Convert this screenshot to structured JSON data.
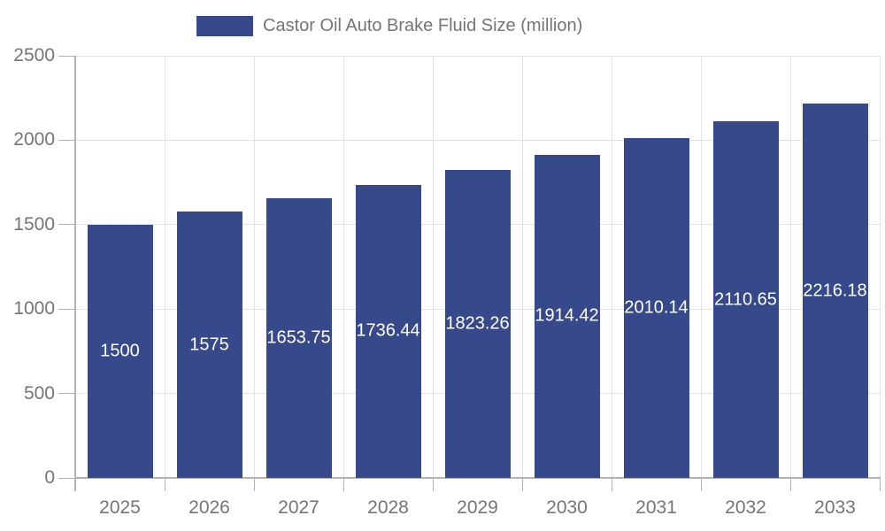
{
  "legend": {
    "label": "Castor Oil Auto Brake Fluid Size (million)"
  },
  "chart_data": {
    "type": "bar",
    "title": "",
    "xlabel": "",
    "ylabel": "",
    "categories": [
      "2025",
      "2026",
      "2027",
      "2028",
      "2029",
      "2030",
      "2031",
      "2032",
      "2033"
    ],
    "values": [
      1500,
      1575,
      1653.75,
      1736.44,
      1823.26,
      1914.42,
      2010.14,
      2110.65,
      2216.18
    ],
    "value_labels": [
      "1500",
      "1575",
      "1653.75",
      "1736.44",
      "1823.26",
      "1914.42",
      "2010.14",
      "2110.65",
      "2216.18"
    ],
    "series_name": "Castor Oil Auto Brake Fluid Size (million)",
    "ylim": [
      0,
      2500
    ],
    "yticks": [
      0,
      500,
      1000,
      1500,
      2000,
      2500
    ],
    "grid": true,
    "legend_position": "top",
    "bar_color": "#36498B",
    "value_label_color": "#ffffff",
    "axis_text_color": "#757575",
    "grid_color": "#e3e3e3",
    "axis_line_color": "#b2b2b2"
  }
}
